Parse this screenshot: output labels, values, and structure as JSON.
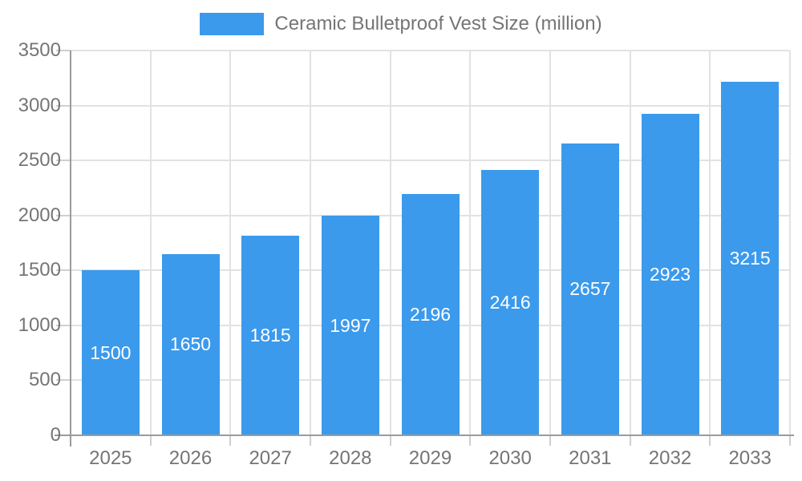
{
  "chart_data": {
    "type": "bar",
    "title": "Ceramic Bulletproof Vest Size (million)",
    "legend": {
      "position": "top",
      "label": "Ceramic Bulletproof Vest Size (million)"
    },
    "categories": [
      "2025",
      "2026",
      "2027",
      "2028",
      "2029",
      "2030",
      "2031",
      "2032",
      "2033"
    ],
    "values": [
      1500,
      1650,
      1815,
      1997,
      2196,
      2416,
      2657,
      2923,
      3215
    ],
    "xlabel": "",
    "ylabel": "",
    "ylim": [
      0,
      3500
    ],
    "y_ticks": [
      0,
      500,
      1000,
      1500,
      2000,
      2500,
      3000,
      3500
    ],
    "grid": true,
    "value_labels_inside_bars": true,
    "colors": {
      "bar": "#3b9aec",
      "value_label": "#ffffff",
      "axis_text": "#757575",
      "legend_text": "#757575",
      "gridline": "#e2e2e2",
      "axis_line": "#9b9b9b",
      "tick_line": "#cfcfcf",
      "background": "#ffffff"
    }
  }
}
